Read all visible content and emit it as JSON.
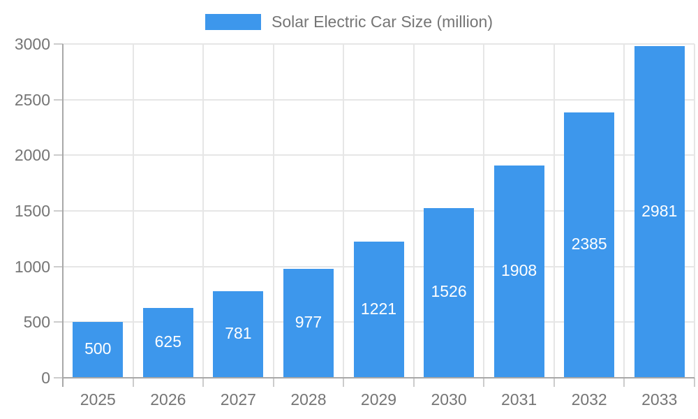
{
  "legend": {
    "label": "Solar Electric Car Size (million)"
  },
  "chart_data": {
    "type": "bar",
    "title": "Solar Electric Car Size (million)",
    "categories": [
      "2025",
      "2026",
      "2027",
      "2028",
      "2029",
      "2030",
      "2031",
      "2032",
      "2033"
    ],
    "values": [
      500,
      625,
      781,
      977,
      1221,
      1526,
      1908,
      2385,
      2981
    ],
    "xlabel": "",
    "ylabel": "",
    "ylim": [
      0,
      3000
    ],
    "yticks": [
      0,
      500,
      1000,
      1500,
      2000,
      2500,
      3000
    ],
    "grid": true,
    "legend_position": "top-center",
    "value_labels": "inside-center",
    "colors": {
      "bar": "#3D97EC",
      "value_label": "#FFFFFF",
      "axis_text": "#757575",
      "axis_line": "#A8A8A8",
      "gridline": "#E6E6E6",
      "tick": "#CCCCCC",
      "background": "#FFFFFF"
    }
  }
}
